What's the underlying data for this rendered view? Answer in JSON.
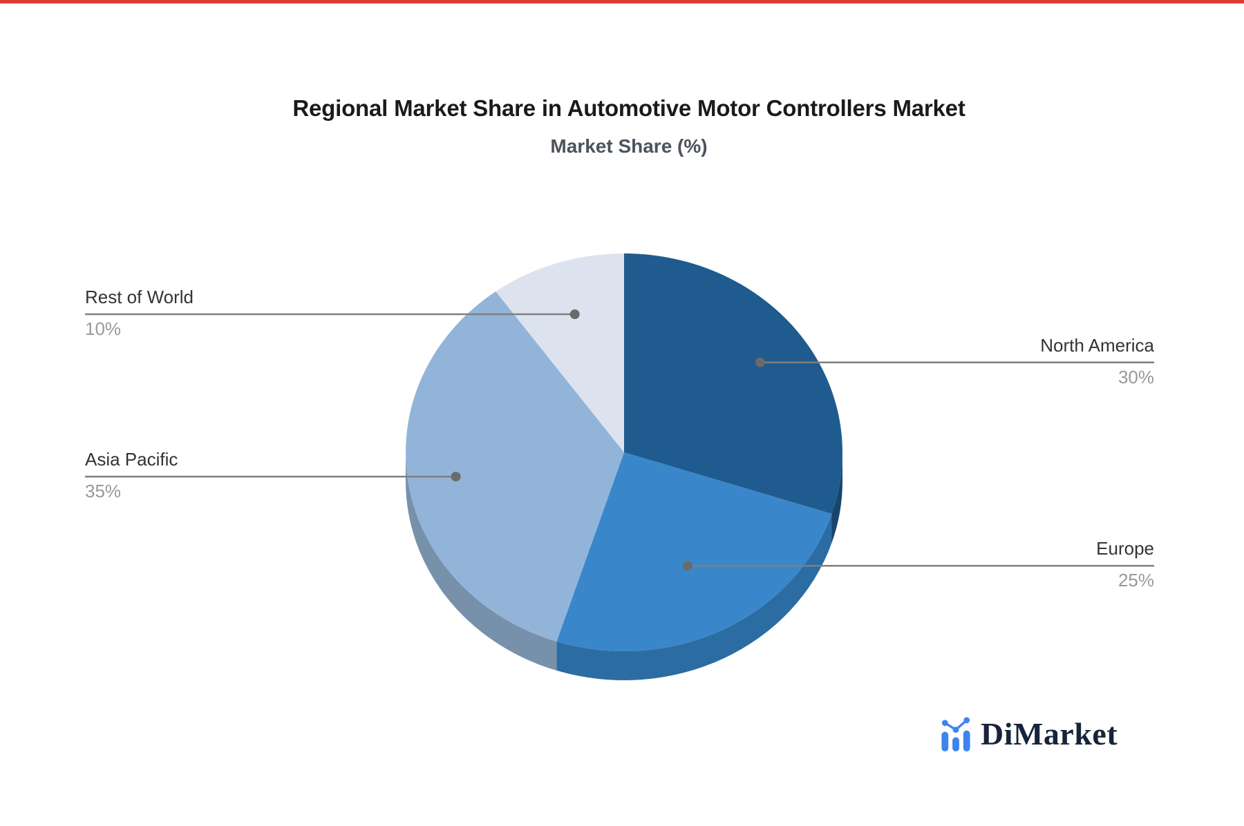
{
  "page": {
    "top_accent_color": "#db3b30",
    "background_color": "#ffffff"
  },
  "chart_data": {
    "type": "pie",
    "title": "Regional Market Share in Automotive Motor Controllers Market",
    "subtitle": "Market Share (%)",
    "unit": "%",
    "effect_3d": true,
    "direction": "clockwise",
    "start_angle_deg": 0,
    "legend_position": "none",
    "categories": [
      "North America",
      "Europe",
      "Asia Pacific",
      "Rest of World"
    ],
    "values": [
      30,
      25,
      35,
      10
    ],
    "slices": [
      {
        "label": "North America",
        "value": 30,
        "percent_label": "30%",
        "color": "#1f5b8e",
        "side_color": "#17456b"
      },
      {
        "label": "Europe",
        "value": 25,
        "percent_label": "25%",
        "color": "#3a86ca",
        "side_color": "#2b6ca2"
      },
      {
        "label": "Asia Pacific",
        "value": 35,
        "percent_label": "35%",
        "color": "#92b4d9",
        "side_color": "#7791ab"
      },
      {
        "label": "Rest of World",
        "value": 10,
        "percent_label": "10%",
        "color": "#dde3ee",
        "side_color": "#b8c4d6"
      }
    ],
    "label_style": {
      "name_color": "#333333",
      "percent_color": "#999999",
      "line_color": "#7f7f7f",
      "dot_color": "#6b6b6b"
    },
    "title_color": "#1a1a1a",
    "subtitle_color": "#4b535c"
  },
  "branding": {
    "logo_text": "DiMarket",
    "logo_text_color": "#16243a",
    "logo_icon": "bar-chart-icon",
    "logo_icon_color": "#3d84f0"
  }
}
